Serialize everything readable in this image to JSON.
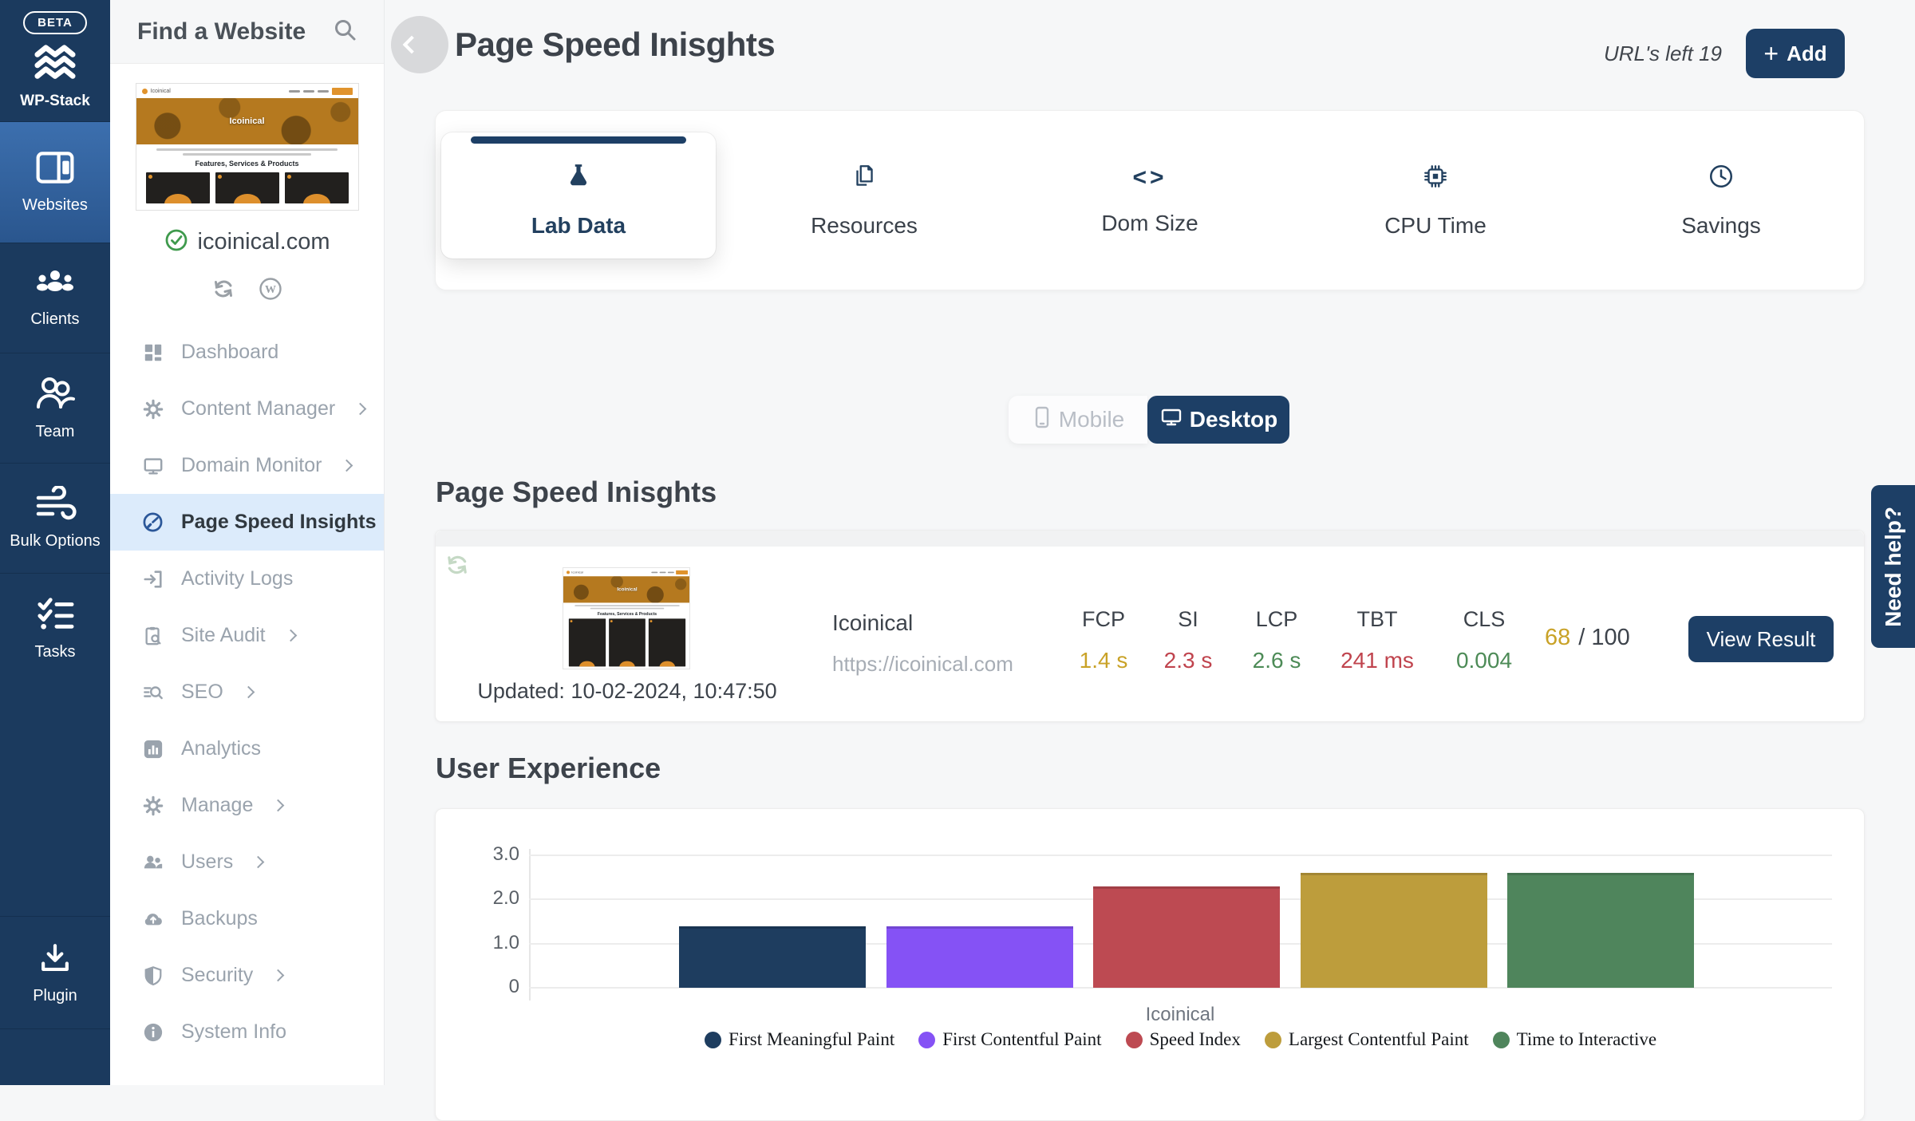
{
  "brand": {
    "beta": "BETA",
    "name": "WP-Stack"
  },
  "rail": {
    "items": [
      {
        "label": "Websites"
      },
      {
        "label": "Clients"
      },
      {
        "label": "Team"
      },
      {
        "label": "Bulk Options"
      },
      {
        "label": "Tasks"
      },
      {
        "label": "Plugin"
      }
    ]
  },
  "sidebar": {
    "search_title": "Find a Website",
    "site": {
      "domain": "icoinical.com",
      "preview": {
        "title": "Icoinical",
        "subheading": "Features, Services & Products"
      }
    },
    "menu": [
      {
        "label": "Dashboard"
      },
      {
        "label": "Content Manager"
      },
      {
        "label": "Domain Monitor"
      },
      {
        "label": "Page Speed Insights"
      },
      {
        "label": "Activity Logs"
      },
      {
        "label": "Site Audit"
      },
      {
        "label": "SEO"
      },
      {
        "label": "Analytics"
      },
      {
        "label": "Manage"
      },
      {
        "label": "Users"
      },
      {
        "label": "Backups"
      },
      {
        "label": "Security"
      },
      {
        "label": "System Info"
      }
    ]
  },
  "header": {
    "title": "Page Speed Inisghts",
    "urls_left": "URL's left 19",
    "add_plus": "+",
    "add_label": "Add"
  },
  "tabs": [
    {
      "label": "Lab Data"
    },
    {
      "label": "Resources"
    },
    {
      "label": "Dom Size"
    },
    {
      "label": "CPU Time"
    },
    {
      "label": "Savings"
    }
  ],
  "device_toggle": {
    "mobile": "Mobile",
    "desktop": "Desktop",
    "selected": "Desktop"
  },
  "results": {
    "heading": "Page Speed Inisghts",
    "card": {
      "updated": "Updated: 10-02-2024, 10:47:50",
      "site_name": "Icoinical",
      "site_url": "https://icoinical.com",
      "metrics": [
        {
          "label": "FCP",
          "value": "1.4 s",
          "status": "average"
        },
        {
          "label": "SI",
          "value": "2.3 s",
          "status": "poor"
        },
        {
          "label": "LCP",
          "value": "2.6 s",
          "status": "good"
        },
        {
          "label": "TBT",
          "value": "241 ms",
          "status": "poor"
        },
        {
          "label": "CLS",
          "value": "0.004",
          "status": "good"
        }
      ],
      "score": {
        "value": "68",
        "suffix": "/ 100"
      },
      "action": "View Result"
    }
  },
  "ux": {
    "heading": "User Experience"
  },
  "chart_data": {
    "type": "bar",
    "categories": [
      "Icoinical"
    ],
    "series": [
      {
        "name": "First Meaningful Paint",
        "color": "#1e3d5f",
        "values": [
          1.4
        ]
      },
      {
        "name": "First Contentful Paint",
        "color": "#8552f5",
        "values": [
          1.4
        ]
      },
      {
        "name": "Speed Index",
        "color": "#bd4a52",
        "values": [
          2.3
        ]
      },
      {
        "name": "Largest Contentful Paint",
        "color": "#bd9d3c",
        "values": [
          2.6
        ]
      },
      {
        "name": "Time to Interactive",
        "color": "#4f855c",
        "values": [
          2.6
        ]
      }
    ],
    "ylim": [
      0,
      3
    ],
    "yticks": [
      {
        "value": 0,
        "label": "0"
      },
      {
        "value": 1,
        "label": "1.0"
      },
      {
        "value": 2,
        "label": "2.0"
      },
      {
        "value": 3,
        "label": "3.0"
      }
    ],
    "grid": true,
    "legend_position": "bottom",
    "xlabel": ""
  },
  "help_tab": {
    "label": "Need help?"
  },
  "colors": {
    "accent_navy": "#1d3f66",
    "active_menu_bg": "#dcebfb",
    "status_good": "#4d8b57",
    "status_average": "#c9a227",
    "status_poor": "#c0444e"
  }
}
